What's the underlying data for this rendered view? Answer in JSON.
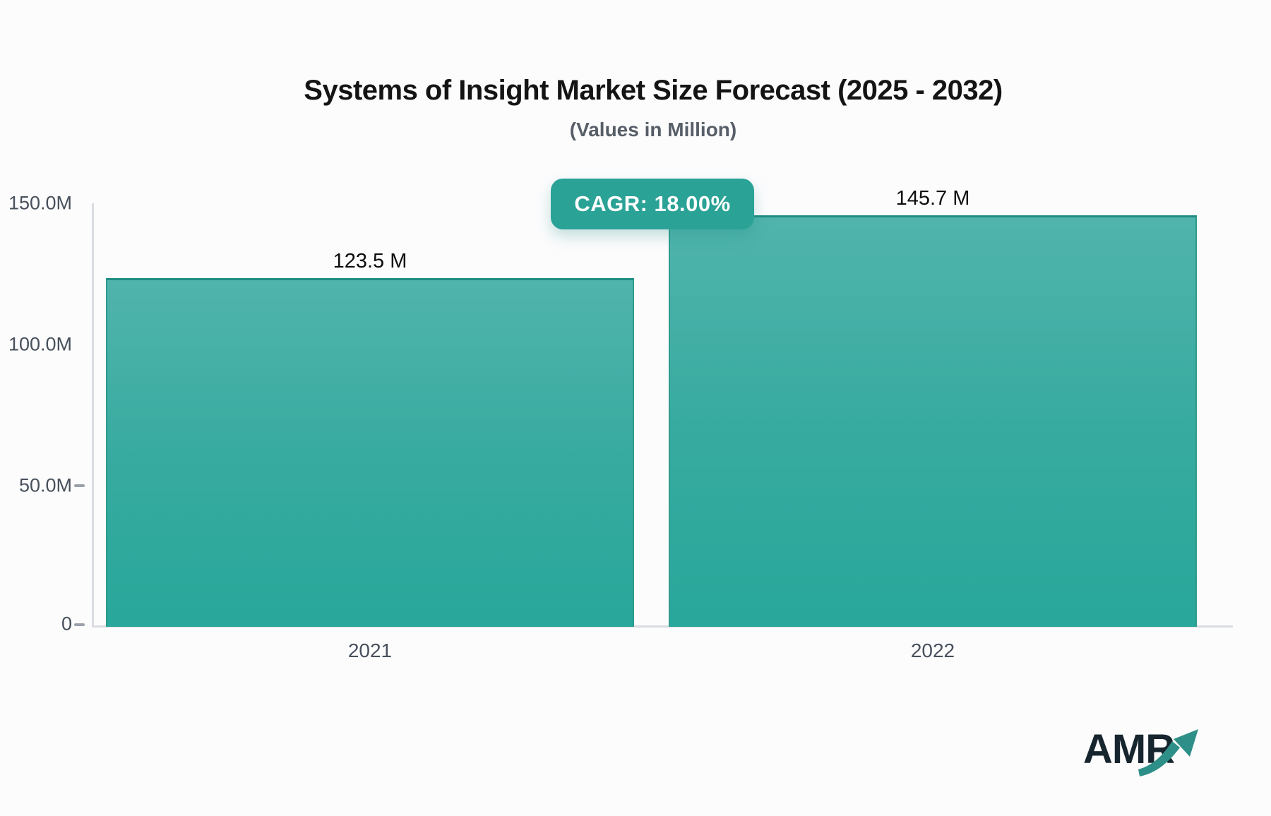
{
  "chart": {
    "title": "Systems of Insight Market Size Forecast (2025 - 2032)",
    "subtitle": "(Values in Million)",
    "badge_text": "CAGR: 18.00%"
  },
  "chart_data": {
    "type": "bar",
    "title": "Systems of Insight Market Size Forecast (2025 - 2032)",
    "subtitle": "(Values in Million)",
    "unit": "Million",
    "cagr_percent": 18.0,
    "categories": [
      "2021",
      "2022"
    ],
    "values": [
      123.5,
      145.7
    ],
    "value_labels": [
      "123.5 M",
      "145.7 M"
    ],
    "xlabel": "",
    "ylabel": "",
    "ylim": [
      0,
      150
    ],
    "yticks": [
      {
        "label": "150.0M",
        "value": 150
      },
      {
        "label": "100.0M",
        "value": 100
      },
      {
        "label": "50.0M",
        "value": 50
      },
      {
        "label": "0",
        "value": 0
      }
    ],
    "grid": false,
    "legend": false,
    "bar_color": "#2aa79a"
  },
  "axis": {
    "yticks": [
      "150.0M",
      "100.0M",
      "50.0M",
      "0"
    ]
  },
  "logo": {
    "text": "AMR"
  },
  "colors": {
    "page_bg": "#fcfcfd",
    "accent": "#2aa296",
    "bar_top": "#50b4ac",
    "bar_mid": "#39aba0",
    "bar_bottom": "#28a79a",
    "bar_border": "#1e8c82",
    "bar_edge": "#2f9a8e",
    "axis_color": "#d9dce1",
    "tick_color": "#47505c",
    "dash_color": "#9aa1ab",
    "title_color": "#141414",
    "subtitle_color": "#575e67",
    "logo_dark": "#17262e",
    "logo_teal": "#2e8f88"
  }
}
